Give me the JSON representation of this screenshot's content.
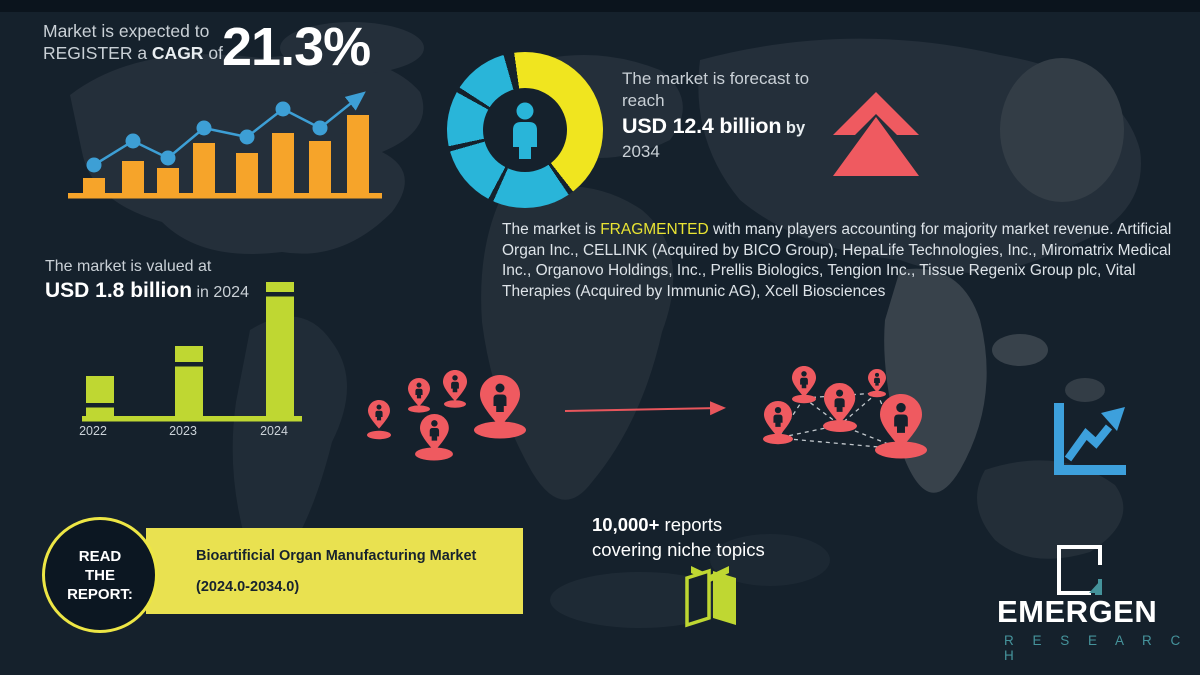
{
  "colors": {
    "background": "#15212c",
    "orange": "#f6a42a",
    "line_blue": "#3d9fd5",
    "donut_cyan": "#29b5d9",
    "donut_yellow": "#f0e51f",
    "green": "#bfd732",
    "red": "#ef5a60",
    "banner_yellow": "#e9e150",
    "teal": "#45939b",
    "text_gray": "#c9d0d6",
    "text_white": "#ffffff"
  },
  "cagr": {
    "line1": "Market is expected to",
    "line2_pre": "REGISTER a ",
    "line2_bold": "CAGR",
    "line2_post": " of",
    "value": "21.3%"
  },
  "forecast": {
    "line1": "The market is forecast to",
    "line2": "reach",
    "value": "USD 12.4 billion",
    "suffix": " by",
    "year": "2034"
  },
  "fragmented": {
    "pre": "The market is ",
    "highlight": "FRAGMENTED",
    "post": " with many players accounting for majority market revenue. Artificial Organ Inc., CELLINK (Acquired by BICO Group), HepaLife Technologies, Inc., Miromatrix Medical Inc., Organovo Holdings, Inc., Prellis Biologics, Tengion Inc., Tissue Regenix Group plc, Vital Therapies (Acquired by Immunic AG), Xcell Biosciences"
  },
  "valued": {
    "line1": "The market is valued at",
    "value": "USD 1.8 billion",
    "suffix": " in 2024"
  },
  "read_report": {
    "line1": "READ",
    "line2": "THE",
    "line3": "REPORT:",
    "banner": "Bioartificial Organ Manufacturing Market (2024.0-2034.0)"
  },
  "reports": {
    "count": "10,000+",
    "count_rest": " reports",
    "line2": "covering niche topics"
  },
  "brand": {
    "name": "EMERGEN",
    "sub": "R E S E A R C H"
  },
  "chart_data": [
    {
      "type": "bar",
      "name": "cagr-trend-chart",
      "title": "Market is expected to REGISTER a CAGR of 21.3%",
      "categories": [
        "1",
        "2",
        "3",
        "4",
        "5",
        "6",
        "7",
        "8"
      ],
      "values": [
        15,
        32,
        25,
        50,
        40,
        60,
        52,
        78
      ],
      "unit": "relative-height-px",
      "overlay_line": [
        28,
        52,
        35,
        65,
        56,
        84,
        65,
        97
      ],
      "colors": {
        "bar": "#f6a42a",
        "line": "#3d9fd5"
      },
      "xlabel": "",
      "ylabel": "",
      "note": "decorative upward trend bars with dotted line and arrow, no axis labels shown"
    },
    {
      "type": "bar",
      "name": "market-value-chart",
      "title": "The market is valued at USD 1.8 billion in 2024",
      "categories": [
        "2022",
        "2023",
        "2024"
      ],
      "values": [
        40,
        70,
        134
      ],
      "cap_offsets": [
        27,
        16,
        10
      ],
      "unit": "relative-height-px",
      "colors": {
        "bar": "#bfd732",
        "cap": "#15212c"
      },
      "xlabel": "",
      "ylabel": "",
      "note": "growth bars by year; 2024 bar corresponds to USD 1.8 billion"
    },
    {
      "type": "pie",
      "name": "market-share-donut",
      "slices": [
        {
          "label": "highlighted-share",
          "value": 42,
          "color": "#f0e51f"
        },
        {
          "label": "remaining-share",
          "value": 58,
          "color": "#29b5d9"
        }
      ],
      "note": "decorative donut, cyan portion split into 4 segments, person icon in center"
    }
  ]
}
